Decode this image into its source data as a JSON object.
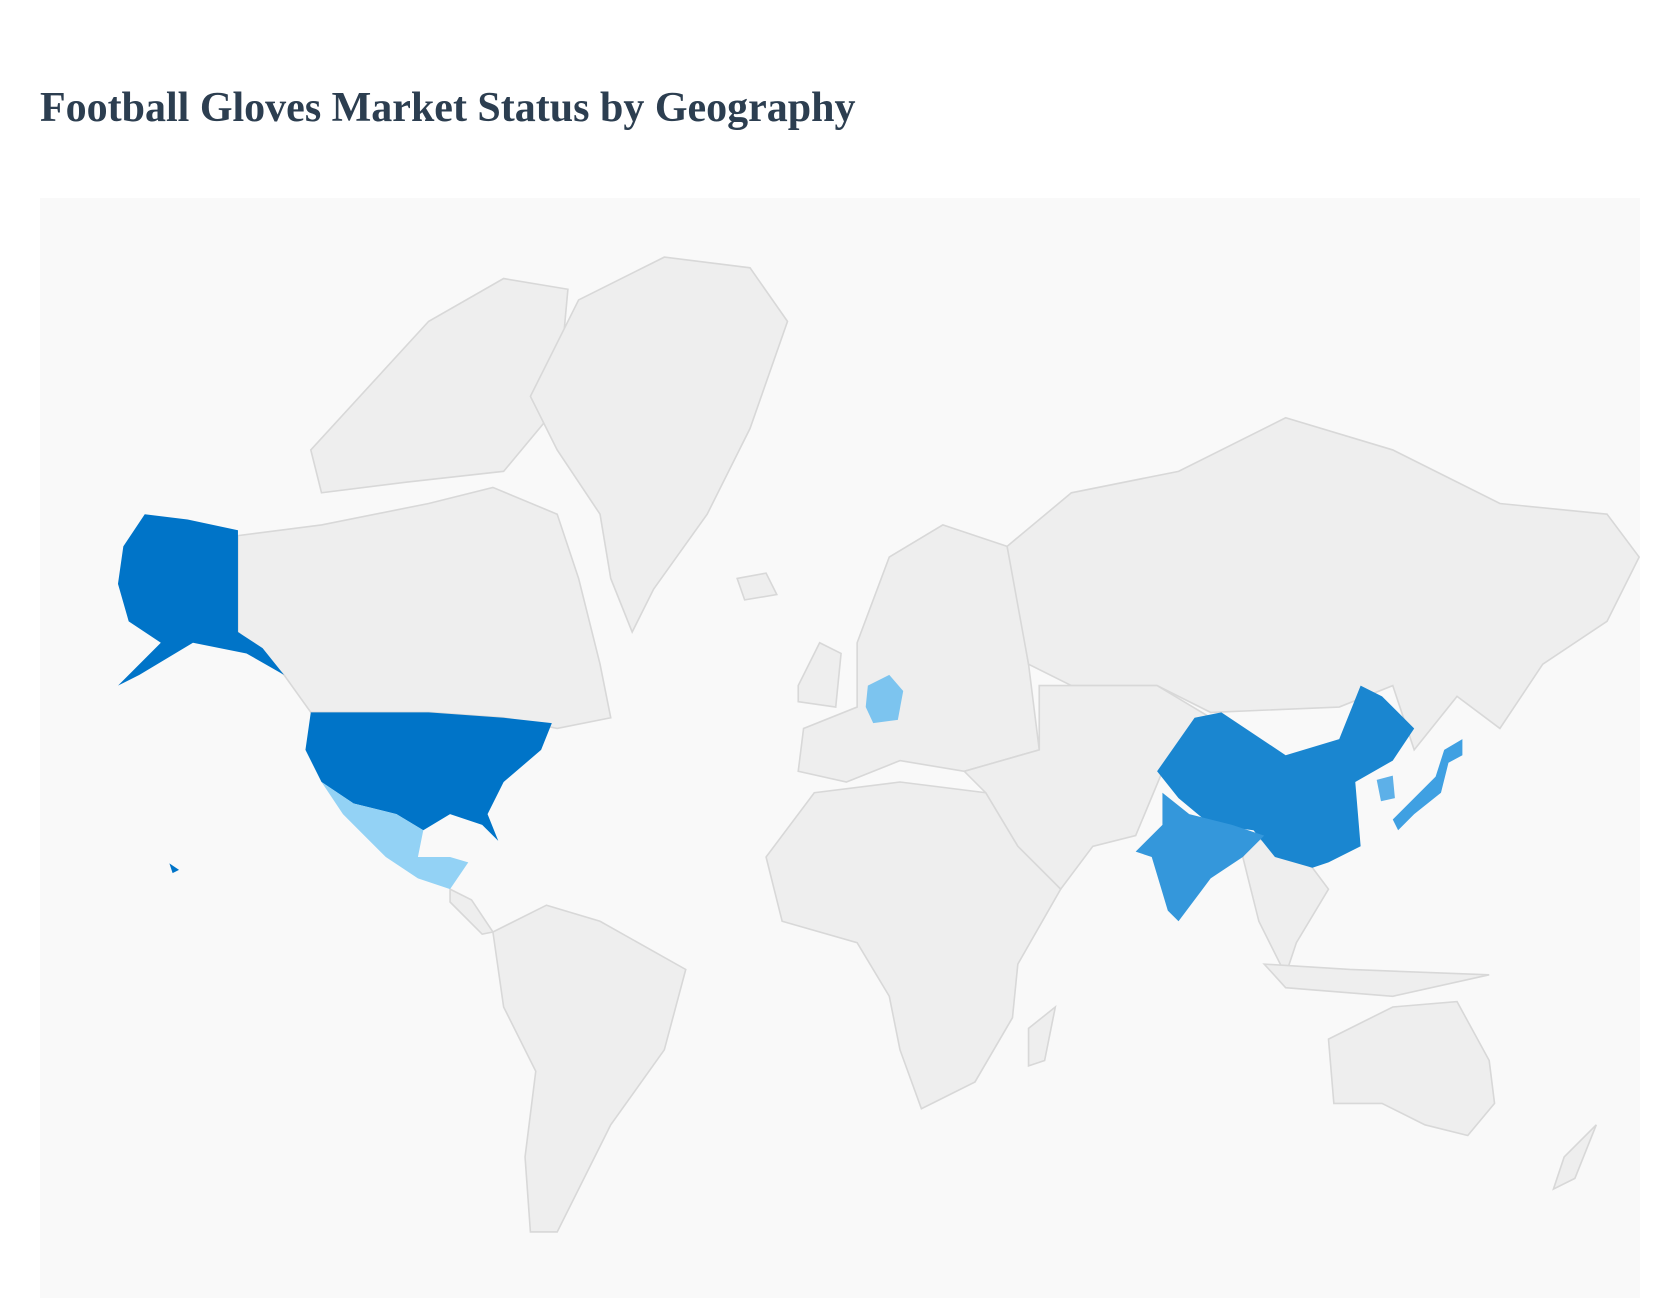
{
  "title": "Football Gloves Market Status by Geography",
  "map": {
    "background_color": "#f9f9f9",
    "land_color": "#eeeeee",
    "border_color": "#d8d8d8",
    "highlighted_countries": [
      {
        "id": "usa",
        "color": "#0074c8"
      },
      {
        "id": "china",
        "color": "#1a86d0"
      },
      {
        "id": "india",
        "color": "#3497db"
      },
      {
        "id": "japan",
        "color": "#3fa0e2"
      },
      {
        "id": "south-korea",
        "color": "#5db0e8"
      },
      {
        "id": "germany",
        "color": "#7cc4ef"
      },
      {
        "id": "mexico",
        "color": "#93d2f5"
      }
    ]
  }
}
